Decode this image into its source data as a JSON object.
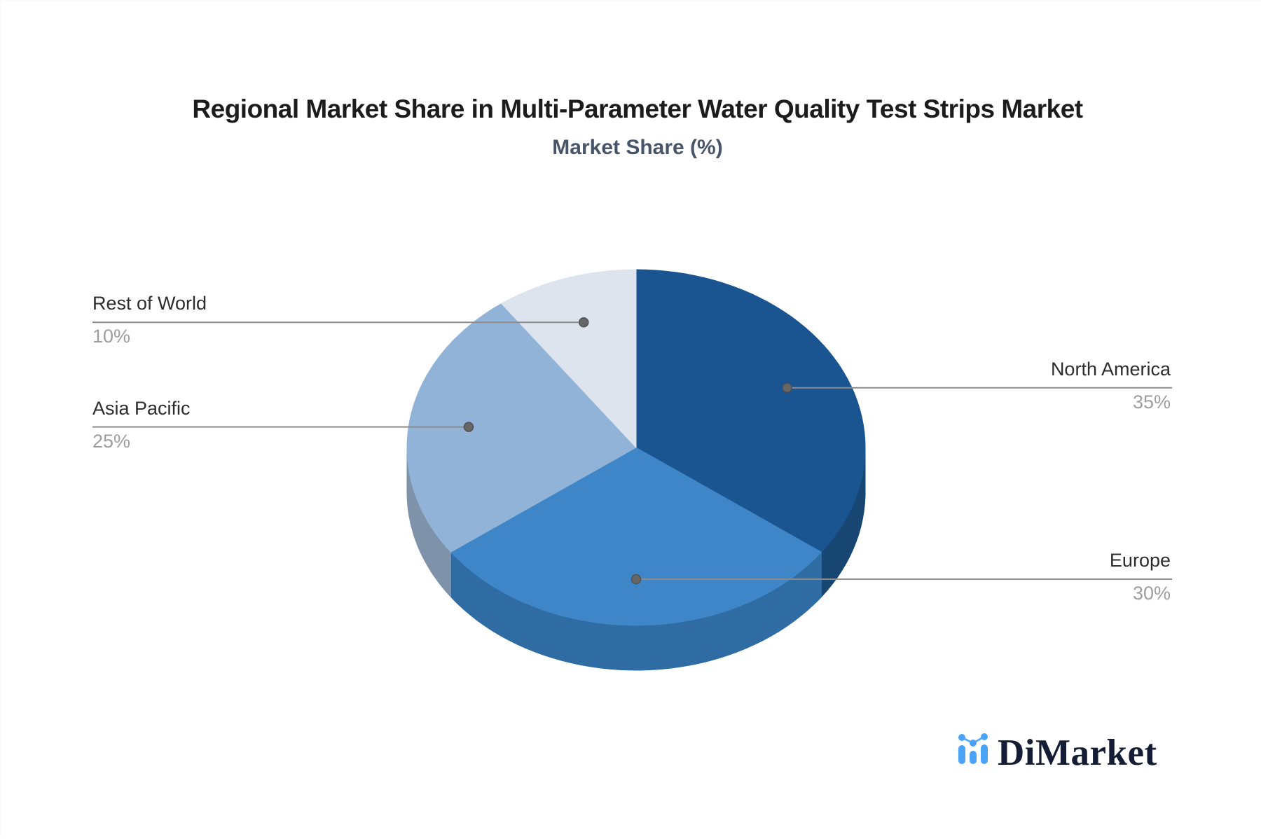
{
  "chart_data": {
    "type": "pie",
    "style": "3d",
    "title": "Regional Market Share in Multi-Parameter Water Quality Test Strips Market",
    "subtitle": "Market Share (%)",
    "unit": "%",
    "start_angle_deg": 90,
    "direction": "clockwise",
    "legend": "none",
    "slices": [
      {
        "label": "North America",
        "value": 35,
        "pct_label": "35%",
        "color": "#1a5591",
        "side_color": "#174673",
        "callout_side": "right"
      },
      {
        "label": "Europe",
        "value": 30,
        "pct_label": "30%",
        "color": "#3e86c8",
        "side_color": "#2e6ca3",
        "callout_side": "right"
      },
      {
        "label": "Asia Pacific",
        "value": 25,
        "pct_label": "25%",
        "color": "#91b3d8",
        "side_color": "#7e93a9",
        "callout_side": "left"
      },
      {
        "label": "Rest of World",
        "value": 10,
        "pct_label": "10%",
        "color": "#dde4ee",
        "side_color": "#c3cede",
        "callout_side": "left"
      }
    ]
  },
  "colors": {
    "background": "#ffffff",
    "title_text": "#1c1c1c",
    "subtitle_text": "#475569",
    "label_text": "#2d2d2d",
    "percent_text": "#9e9e9e",
    "leader_line": "#8c8c8c",
    "dot_fill": "#666666",
    "dot_stroke": "#515151"
  },
  "branding": {
    "logo_text": "DiMarket",
    "logo_icon": "bar-line-chart-icon",
    "logo_icon_color": "#4aa3f7",
    "logo_text_color": "#141d35"
  }
}
